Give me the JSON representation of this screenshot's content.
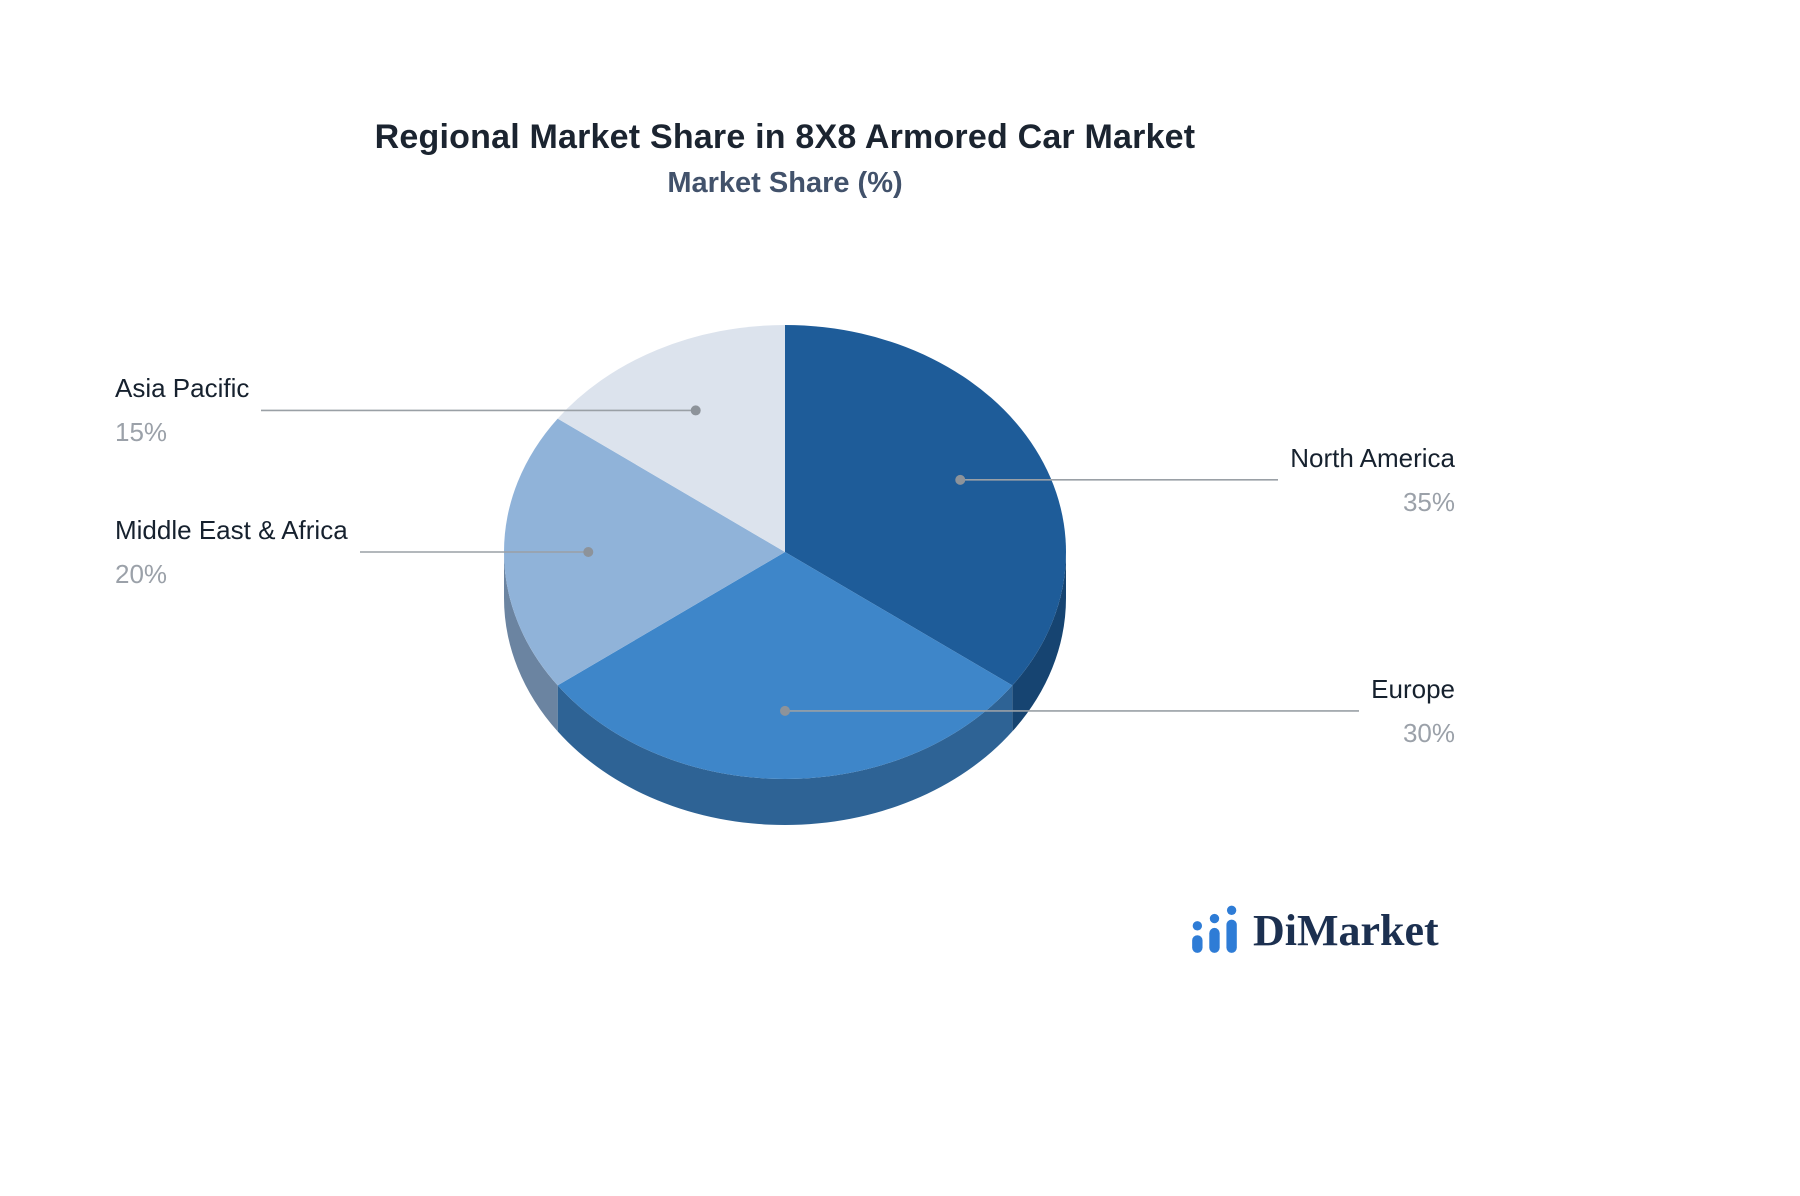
{
  "chart": {
    "title": "Regional Market Share in 8X8 Armored Car Market",
    "subtitle": "Market Share (%)"
  },
  "chart_data": {
    "type": "pie",
    "title": "Regional Market Share in 8X8 Armored Car Market",
    "subtitle": "Market Share (%)",
    "unit": "%",
    "direction": "clockwise",
    "start_angle_deg": 0,
    "effect_3d": true,
    "legend_position": "callout-labels",
    "leader_color": "#9aa0a6",
    "dot_color": "#8d939a",
    "slices": [
      {
        "label": "North America",
        "value": 35,
        "pct_label": "35%",
        "color": "#1e5c99",
        "label_side": "right"
      },
      {
        "label": "Europe",
        "value": 30,
        "pct_label": "30%",
        "color": "#3e86c9",
        "label_side": "right"
      },
      {
        "label": "Middle East & Africa",
        "value": 20,
        "pct_label": "20%",
        "color": "#90b3d9",
        "label_side": "left"
      },
      {
        "label": "Asia Pacific",
        "value": 15,
        "pct_label": "15%",
        "color": "#dce3ed",
        "label_side": "left"
      }
    ]
  },
  "logo": {
    "text": "DiMarket",
    "icon": "bar-chart-icon",
    "text_color": "#1c3050",
    "icon_color": "#2e7cd6"
  }
}
